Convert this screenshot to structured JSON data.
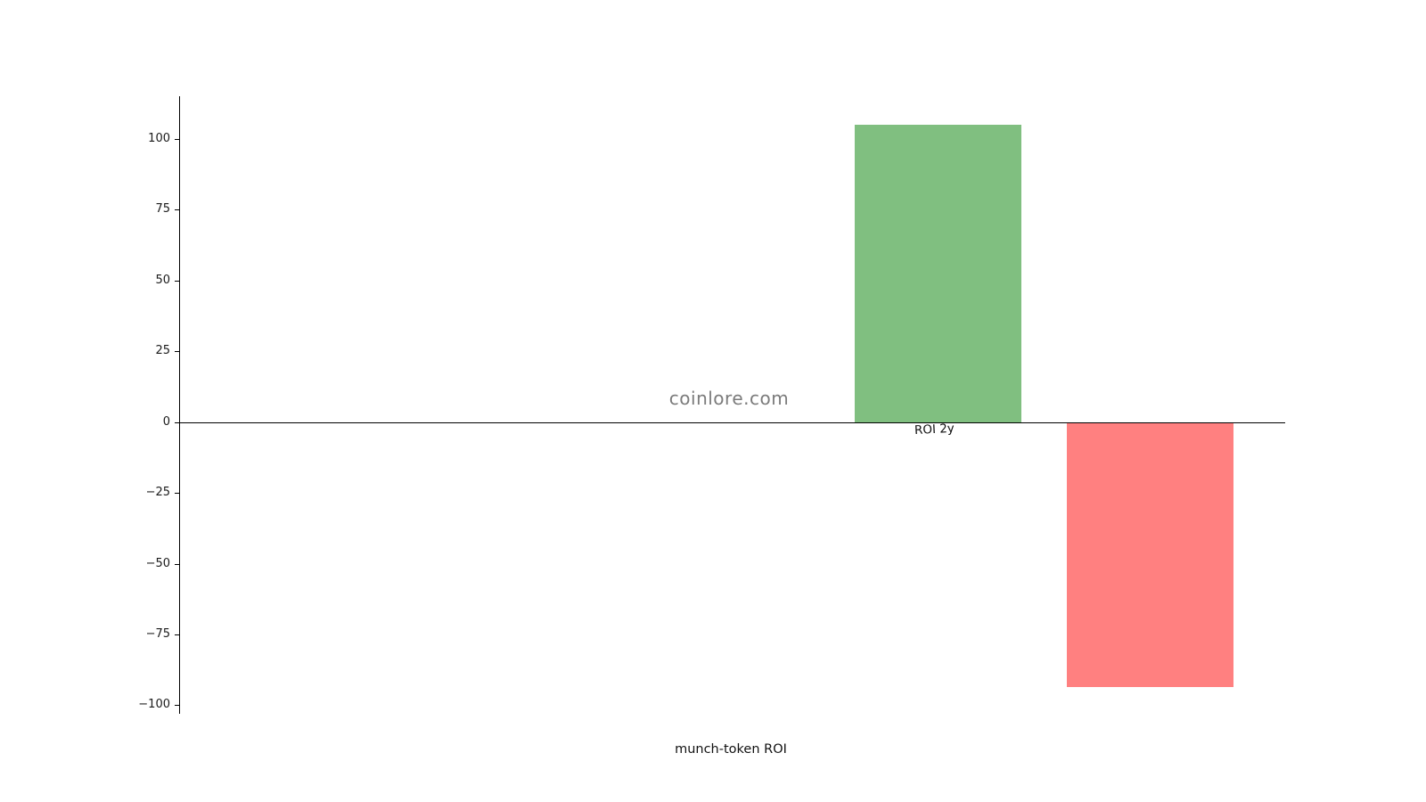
{
  "watermark": {
    "text": "coinlore.com",
    "color": "#7b7b7b"
  },
  "chart_data": {
    "type": "bar",
    "title": "munch-token ROI",
    "categories": [
      "ROI 2y",
      ""
    ],
    "values": [
      105,
      -93
    ],
    "bar_colors": [
      "#80bf80",
      "#ff8080"
    ],
    "yticks": [
      100,
      75,
      50,
      25,
      0,
      -25,
      -50,
      -75,
      -100
    ],
    "ylim": [
      -103,
      115
    ],
    "xlabel": "",
    "ylabel": "",
    "grid": false,
    "legend": false,
    "axis_color": "#000000",
    "tick_label_color": "#1a1a1a",
    "background": "#ffffff"
  }
}
